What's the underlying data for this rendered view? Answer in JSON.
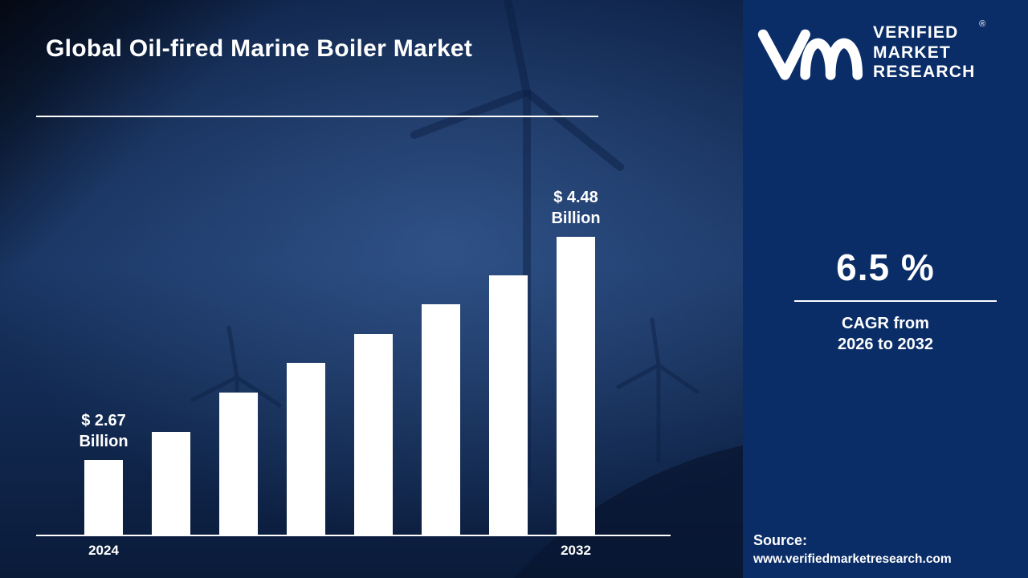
{
  "title": "Global Oil-fired Marine Boiler Market",
  "chart_data": {
    "type": "bar",
    "unit": "USD Billion",
    "values": [
      2.67,
      2.9,
      3.22,
      3.46,
      3.69,
      3.93,
      4.17,
      4.48
    ],
    "x_ticks": [
      {
        "bar": 0,
        "label": "2024"
      },
      {
        "bar": 7,
        "label": "2032"
      }
    ],
    "annotations": [
      {
        "bar": 0,
        "line1": "$ 2.67",
        "line2": "Billion"
      },
      {
        "bar": 7,
        "line1": "$ 4.48",
        "line2": "Billion"
      }
    ],
    "bar_color": "#ffffff",
    "axis_color": "#ffffff",
    "y_axis_shown": false,
    "legend": "none"
  },
  "brand": {
    "lines": [
      "VERIFIED",
      "MARKET",
      "RESEARCH"
    ],
    "registered_mark": "®"
  },
  "stats": {
    "cagr_value": "6.5 %",
    "cagr_label_line1": "CAGR from",
    "cagr_label_line2": "2026 to 2032"
  },
  "source": {
    "label": "Source:",
    "url": "www.verifiedmarketresearch.com"
  },
  "colors": {
    "right_panel_bg": "#0a2d68",
    "bar": "#ffffff",
    "text": "#ffffff"
  }
}
